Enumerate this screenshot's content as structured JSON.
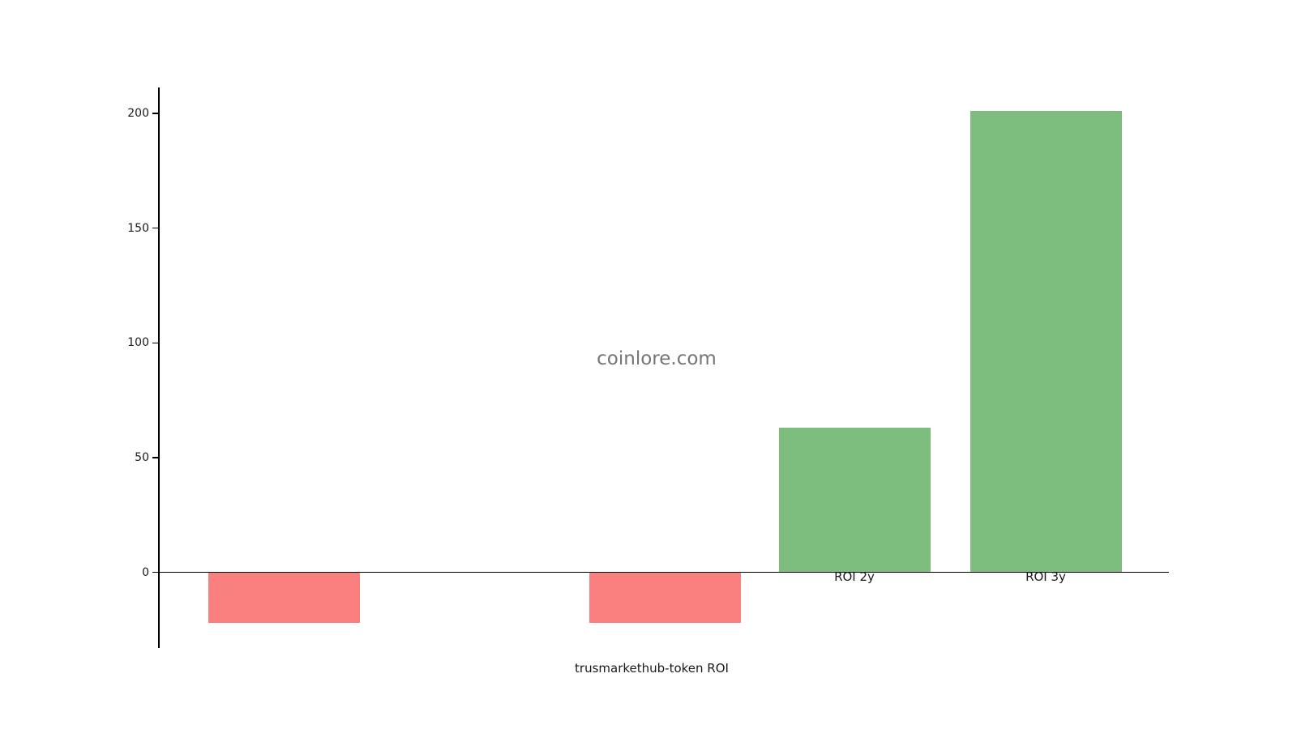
{
  "watermark": {
    "text": "coinlore.com",
    "color": "#757575"
  },
  "chart_data": {
    "type": "bar",
    "title": "",
    "xlabel": "trusmarkethub-token ROI",
    "ylabel": "",
    "categories": [
      "",
      "",
      "ROI 2y",
      "ROI 3y"
    ],
    "values": [
      -22,
      -22,
      63,
      201
    ],
    "bar_colors": [
      "#fa8080",
      "#fa8080",
      "#7dbd7d",
      "#7dbd7d"
    ],
    "negative_color": "#fa8080",
    "positive_color": "#7dbd7d",
    "yticks": [
      0,
      50,
      100,
      150,
      200
    ],
    "ylim": [
      -33,
      211
    ],
    "grid": false,
    "legend_position": "none",
    "axis_color": "#000000",
    "text_color": "#1a1a1a"
  }
}
